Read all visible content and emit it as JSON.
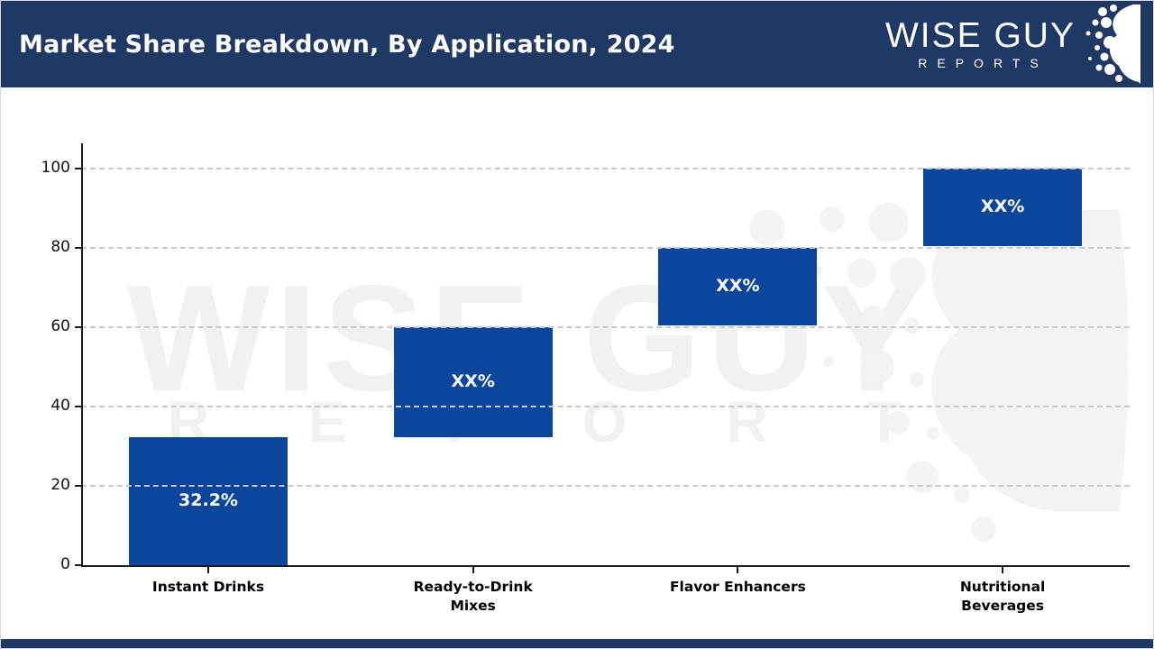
{
  "header": {
    "title": "Market Share Breakdown, By Application, 2024",
    "logo": {
      "name": "WISE GUY",
      "subtitle": "REPORTS"
    }
  },
  "watermark": {
    "line1": "WISE GUY",
    "line2": "R E P O R T S"
  },
  "colors": {
    "header_bg": "#1f3864",
    "footer_bg": "#1f3864",
    "bar_fill": "#0b459c",
    "bar_label_text": "#ffffff",
    "grid_line": "#c9c9c9",
    "axis_line": "#1a1a1a",
    "tick_text": "#111111",
    "watermark": "#f1f1f1",
    "frame_border": "#d9d9d9"
  },
  "chart_data": {
    "type": "bar",
    "variant": "waterfall",
    "title": "Market Share Breakdown, By Application, 2024",
    "categories": [
      "Instant Drinks",
      "Ready-to-Drink Mixes",
      "Flavor Enhancers",
      "Nutritional Beverages"
    ],
    "tick_label_lines": [
      [
        "Instant Drinks"
      ],
      [
        "Ready-to-Drink",
        "Mixes"
      ],
      [
        "Flavor Enhancers"
      ],
      [
        "Nutritional",
        "Beverages"
      ]
    ],
    "segments": [
      {
        "category": "Instant Drinks",
        "start": 0,
        "end": 32.2,
        "label": "32.2%"
      },
      {
        "category": "Ready-to-Drink Mixes",
        "start": 32.2,
        "end": 60,
        "label": "XX%"
      },
      {
        "category": "Flavor Enhancers",
        "start": 60.5,
        "end": 80,
        "label": "XX%"
      },
      {
        "category": "Nutritional Beverages",
        "start": 80.5,
        "end": 100,
        "label": "XX%"
      }
    ],
    "xlabel": "",
    "ylabel": "",
    "yticks": [
      0,
      20,
      40,
      60,
      80,
      100
    ],
    "ylim": [
      0,
      105
    ],
    "grid": "dashed-horizontal",
    "legend": "none"
  }
}
